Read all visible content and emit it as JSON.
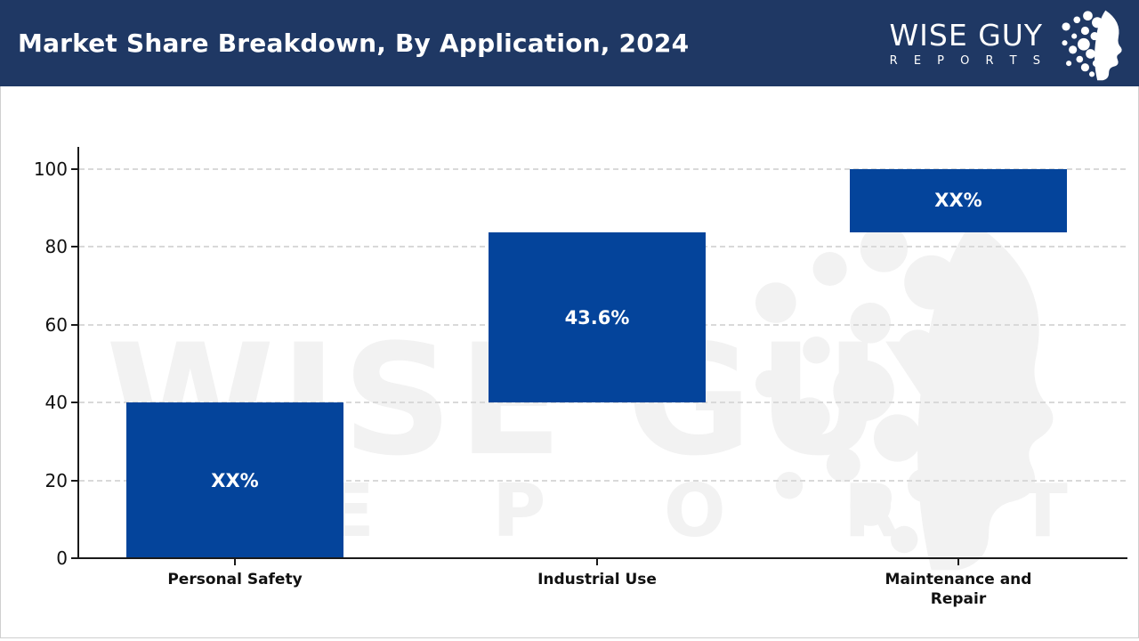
{
  "header": {
    "title": "Market Share Breakdown, By Application, 2024",
    "logo": {
      "name_top": "WISE GUY",
      "name_bottom": "R E P O R T S"
    }
  },
  "watermark": {
    "text_top": "WISE GUY",
    "text_bottom": "R E P O R T S"
  },
  "colors": {
    "header_bg": "#1f3864",
    "bar_blue": "#04449b",
    "gridline": "#d9d9d9",
    "axis": "#1a1a1a",
    "watermark_gray": "#f2f2f2",
    "card_border": "#cfcfcf"
  },
  "chart_data": {
    "type": "bar",
    "subtype": "floating-segment-breakdown",
    "title": "Market Share Breakdown, By Application, 2024",
    "xlabel": "",
    "ylabel": "",
    "categories": [
      "Personal Safety",
      "Industrial Use",
      "Maintenance and Repair"
    ],
    "series": [
      {
        "name": "Market Share %",
        "segments": [
          {
            "category": "Personal Safety",
            "from": 0,
            "to": 40,
            "label": "XX%"
          },
          {
            "category": "Industrial Use",
            "from": 40,
            "to": 83.6,
            "label": "43.6%"
          },
          {
            "category": "Maintenance and Repair",
            "from": 83.6,
            "to": 100,
            "label": "XX%"
          }
        ]
      }
    ],
    "yticks": [
      0,
      20,
      40,
      60,
      80,
      100
    ],
    "ytick_labels": [
      "0",
      "20",
      "40",
      "60",
      "80",
      "100"
    ],
    "ylim": [
      0,
      105
    ],
    "grid": "dashed-horizontal",
    "legend": "none",
    "bar_color": "#04449b"
  }
}
